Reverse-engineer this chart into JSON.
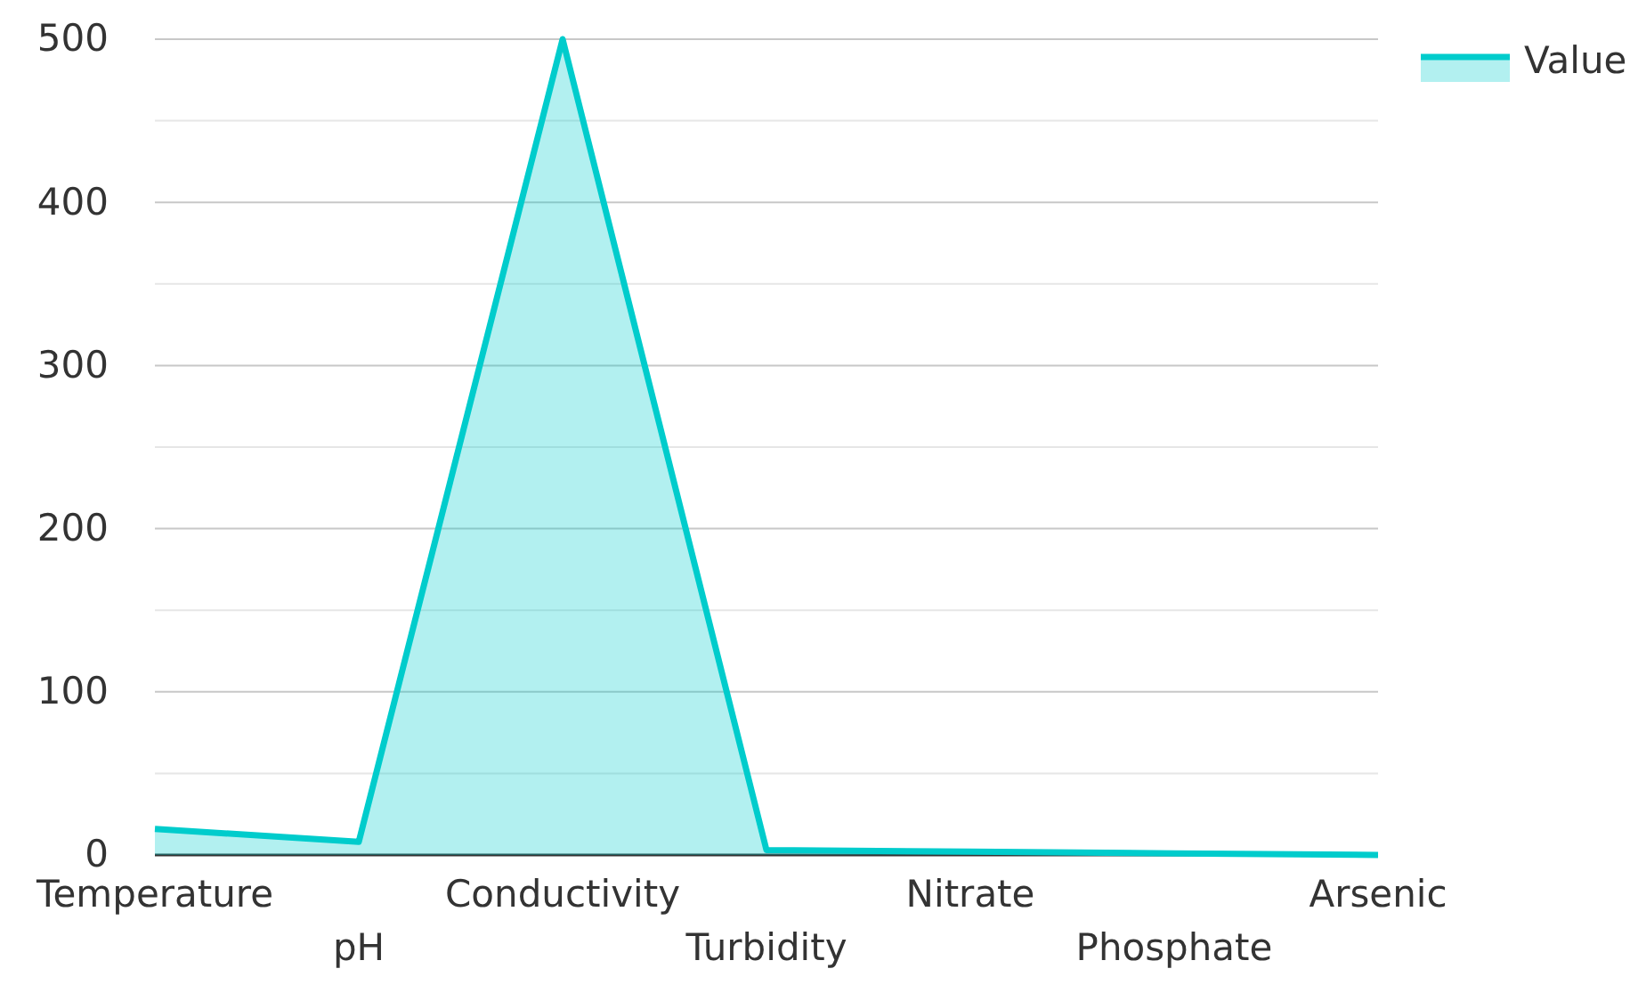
{
  "chart_data": {
    "type": "area",
    "categories": [
      "Temperature",
      "pH",
      "Conductivity",
      "Turbidity",
      "Nitrate",
      "Phosphate",
      "Arsenic"
    ],
    "series": [
      {
        "name": "Value",
        "color": "#00cccc",
        "values": [
          16,
          8,
          500,
          3,
          2,
          1,
          0
        ]
      }
    ],
    "ylim": [
      0,
      500
    ],
    "yticks": [
      0,
      {
        "value": 50,
        "label": null
      },
      100,
      {
        "value": 150,
        "label": null
      },
      200,
      {
        "value": 250,
        "label": null
      },
      300,
      {
        "value": 350,
        "label": null
      },
      400,
      {
        "value": 450,
        "label": null
      },
      500
    ],
    "grid": "y",
    "legend": "top right"
  }
}
